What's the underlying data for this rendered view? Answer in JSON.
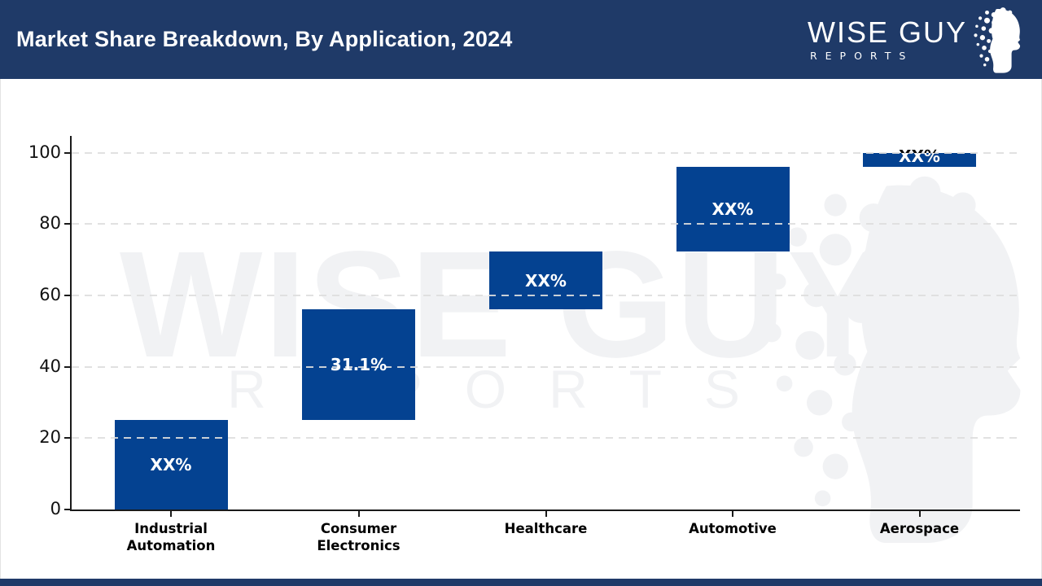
{
  "header": {
    "title": "Market Share Breakdown, By Application, 2024",
    "logo_line1": "WISE GUY",
    "logo_line2": "REPORTS",
    "bg_color": "#1F3A68"
  },
  "watermark": {
    "line1": "WISE GUY",
    "line2": "REPORTS"
  },
  "chart_data": {
    "type": "bar",
    "variant": "floating-segment-waterfall",
    "title": "Market Share Breakdown, By Application, 2024",
    "categories": [
      "Industrial\nAutomation",
      "Consumer\nElectronics",
      "Healthcare",
      "Automotive",
      "Aerospace"
    ],
    "segments": [
      {
        "category": "Industrial Automation",
        "start": 0,
        "end": 25,
        "label": "XX%"
      },
      {
        "category": "Consumer Electronics",
        "start": 25,
        "end": 56.1,
        "label": "31.1%"
      },
      {
        "category": "Healthcare",
        "start": 56.1,
        "end": 72.2,
        "label": "XX%"
      },
      {
        "category": "Automotive",
        "start": 72.2,
        "end": 96.1,
        "label": "XX%"
      },
      {
        "category": "Aerospace",
        "start": 96.1,
        "end": 100,
        "label": "XX%"
      }
    ],
    "yticks": [
      0,
      20,
      40,
      60,
      80,
      100
    ],
    "ylim": [
      0,
      107
    ],
    "xlabel": "",
    "ylabel": "",
    "grid": "horizontal-dashed",
    "grid_color": "#DEDEDE",
    "bar_color": "#044291",
    "bar_label_color": "#FFFFFF",
    "legend": "none"
  },
  "footer": {
    "bg_color": "#1F3A68"
  }
}
